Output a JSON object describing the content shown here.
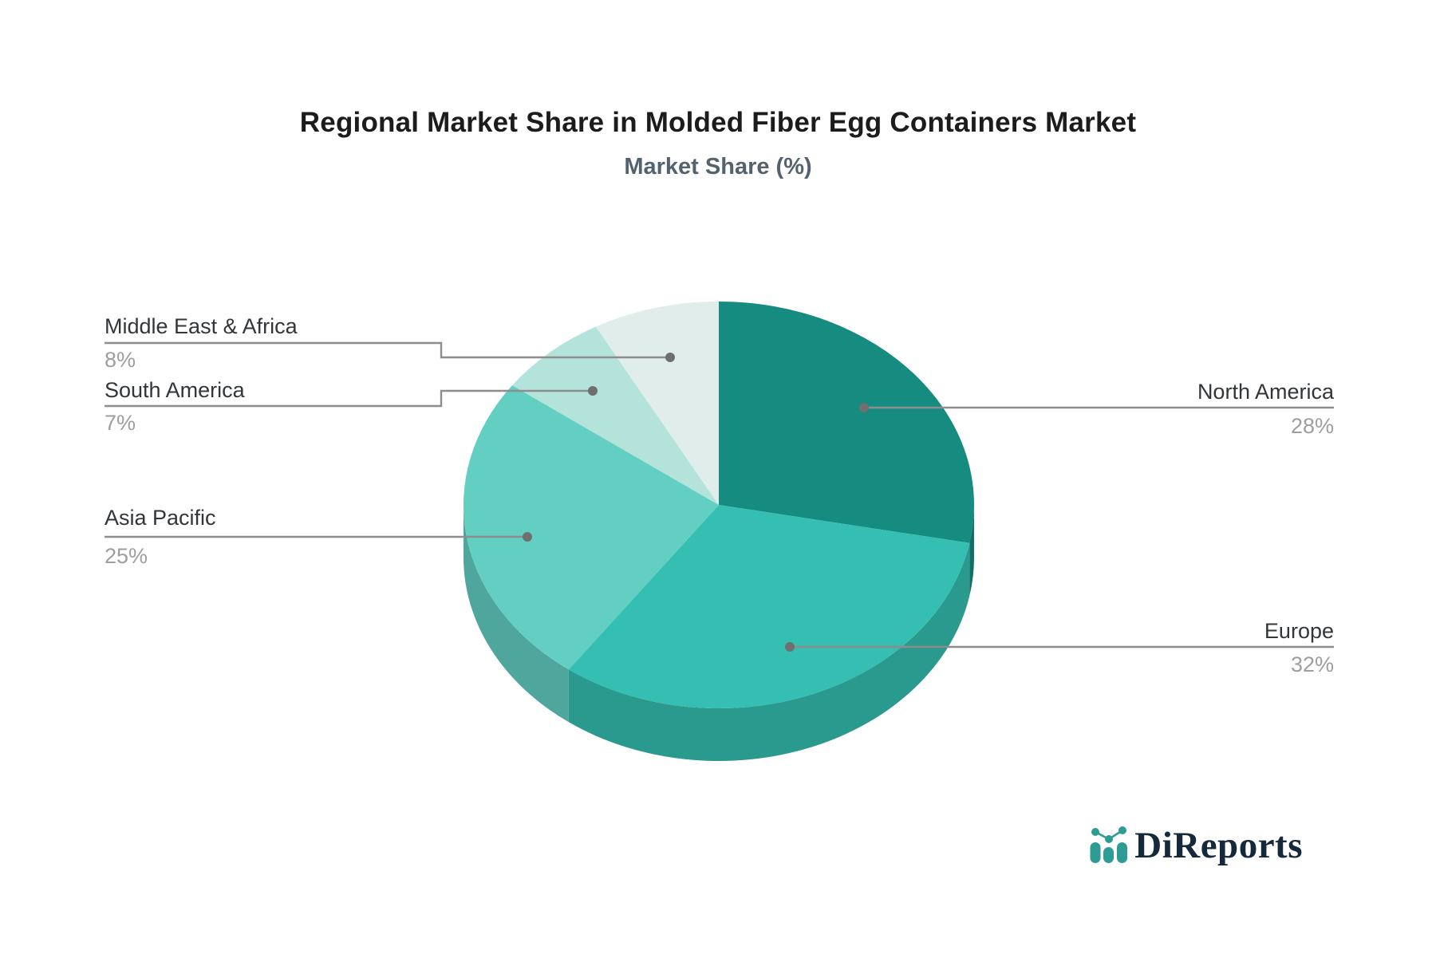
{
  "header": {
    "title": "Regional Market Share in Molded Fiber Egg Containers Market",
    "subtitle": "Market Share (%)"
  },
  "chart_data": {
    "type": "pie",
    "style": "3d",
    "title": "Regional Market Share in Molded Fiber Egg Containers Market",
    "subtitle": "Market Share (%)",
    "unit": "%",
    "start_angle_deg": 0,
    "direction": "clockwise",
    "legend_position": "callouts",
    "labels": [
      "North America",
      "Europe",
      "Asia Pacific",
      "South America",
      "Middle East & Africa"
    ],
    "values": [
      28,
      32,
      25,
      7,
      8
    ],
    "value_labels": [
      "28%",
      "32%",
      "25%",
      "7%",
      "8%"
    ],
    "colors": [
      "#168b80",
      "#35bfb2",
      "#63cfc3",
      "#b4e3db",
      "#e0edea"
    ],
    "leader_line_color": "#8d8d8d",
    "leader_dot_color": "#6f6f6f"
  },
  "brand": {
    "name": "DiReports",
    "icon": "bar-chart-logo-icon",
    "text_color": "#16293b",
    "accent_color": "#2e9c95"
  }
}
